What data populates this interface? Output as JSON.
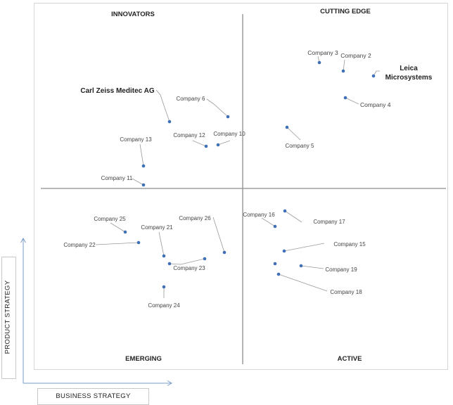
{
  "quadrants": {
    "top_left": "INNOVATORS",
    "top_right": "CUTTING EDGE",
    "bottom_left": "EMERGING",
    "bottom_right": "ACTIVE"
  },
  "axes": {
    "y_label": "PRODUCT STRATEGY",
    "x_label": "BUSINESS STRATEGY"
  },
  "colors": {
    "dot": "#3f6fb5",
    "leader": "#9a9a9a",
    "divider": "#8c8c8c",
    "frame": "#d6d6d6",
    "arrow": "#7a9cc6"
  },
  "companies": [
    {
      "name": "Company 3"
    },
    {
      "name": "Company 2"
    },
    {
      "name": "Leica Microsystems",
      "lines": [
        "Leica",
        "Microsystems"
      ]
    },
    {
      "name": "Company 4"
    },
    {
      "name": "Company 5"
    },
    {
      "name": "Carl Zeiss Meditec AG"
    },
    {
      "name": "Company 6"
    },
    {
      "name": "Company 10"
    },
    {
      "name": "Company 12"
    },
    {
      "name": "Company 13"
    },
    {
      "name": "Company 11"
    },
    {
      "name": "Company 25"
    },
    {
      "name": "Company 22"
    },
    {
      "name": "Company 21"
    },
    {
      "name": "Company 26"
    },
    {
      "name": "Company 23"
    },
    {
      "name": "Company 24"
    },
    {
      "name": "Company 16"
    },
    {
      "name": "Company 17"
    },
    {
      "name": "Company 15"
    },
    {
      "name": "Company 19"
    },
    {
      "name": "Company 18"
    }
  ]
}
